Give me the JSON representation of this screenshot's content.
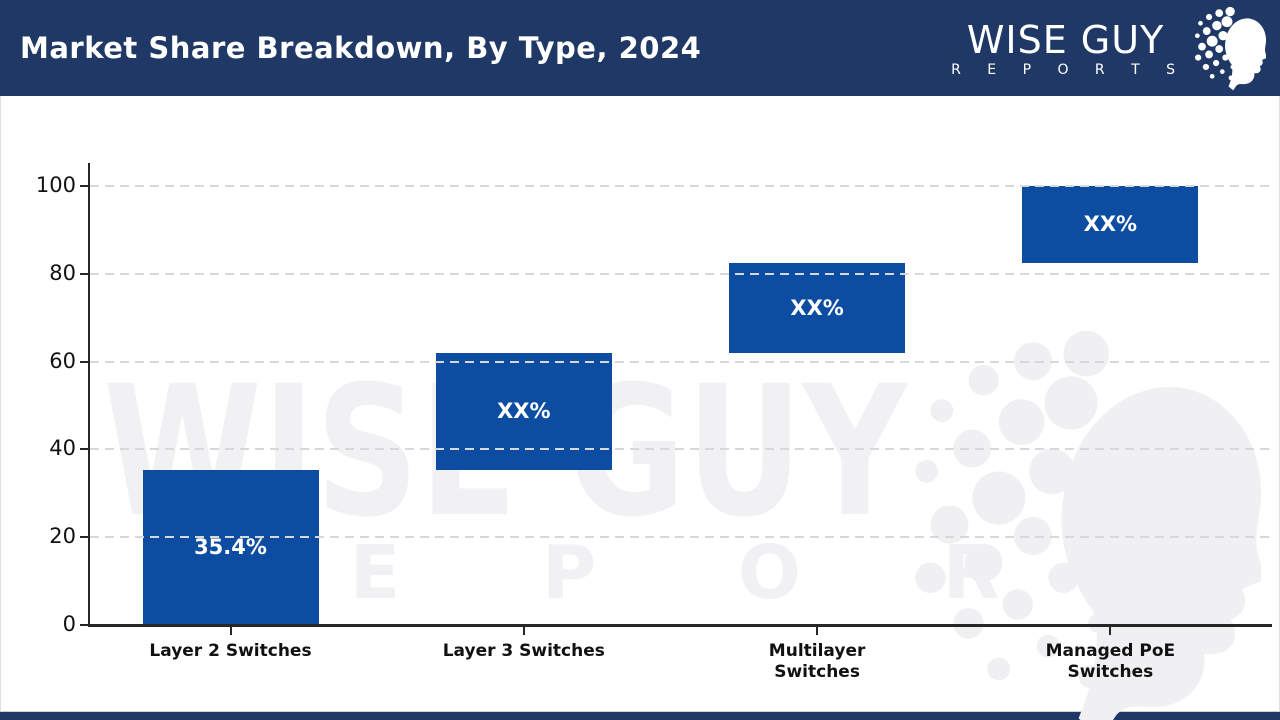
{
  "header": {
    "title": "Market Share Breakdown, By Type, 2024",
    "background_color": "#1f3866",
    "logo": {
      "line1": "WISE GUY",
      "line2": "R E P O R T S"
    }
  },
  "watermark": {
    "line1": "WISE GUY",
    "line2": "R E P O R T S",
    "color": "#f1f1f3"
  },
  "footer": {
    "background_color": "#1f3866"
  },
  "chart_data": {
    "type": "bar",
    "subtype": "waterfall",
    "title": "Market Share Breakdown, By Type, 2024",
    "xlabel": "",
    "ylabel": "",
    "ylim": [
      0,
      105
    ],
    "yticks": [
      0,
      20,
      40,
      60,
      80,
      100
    ],
    "grid": "horizontal dashed, drawn above bars",
    "legend": "none",
    "bar_color": "#0d4da1",
    "bar_label_color": "#ffffff",
    "gridline_color": "#d8d8d8",
    "categories": [
      "Layer 2 Switches",
      "Layer 3 Switches",
      "Multilayer\nSwitches",
      "Managed PoE\nSwitches"
    ],
    "segments": [
      {
        "category": "Layer 2 Switches",
        "start": 0,
        "end": 35.4,
        "label": "35.4%"
      },
      {
        "category": "Layer 3 Switches",
        "start": 35.4,
        "end": 62.0,
        "label": "XX%"
      },
      {
        "category": "Multilayer Switches",
        "start": 62.0,
        "end": 82.5,
        "label": "XX%"
      },
      {
        "category": "Managed PoE Switches",
        "start": 82.5,
        "end": 100,
        "label": "XX%"
      }
    ]
  }
}
